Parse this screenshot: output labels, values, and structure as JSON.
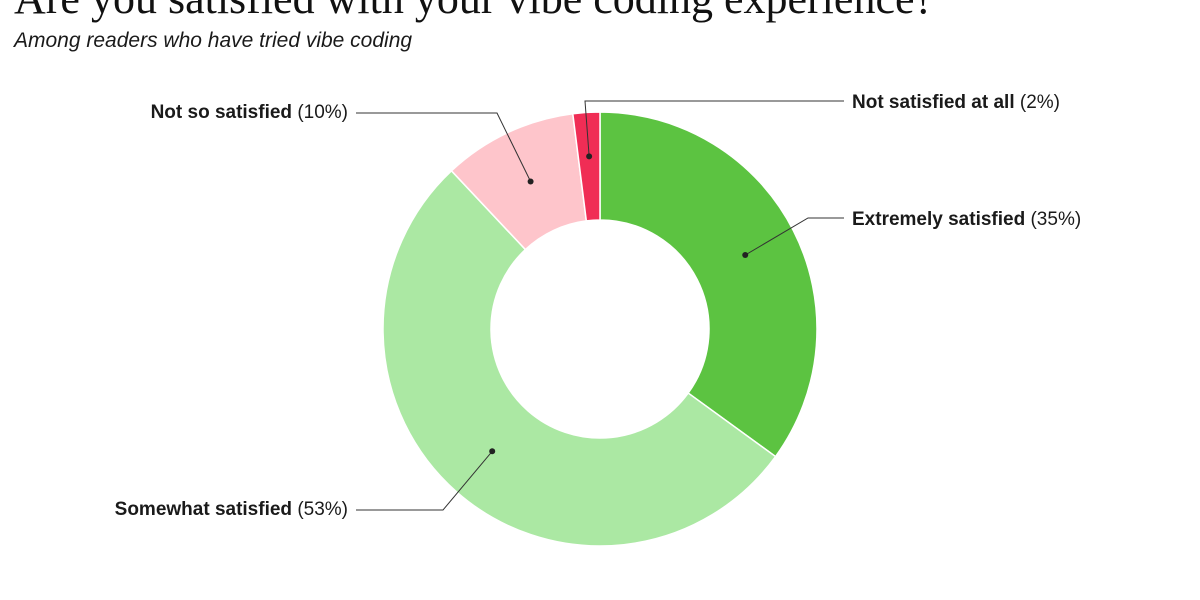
{
  "title": "Are you satisfied with your vibe coding experience?",
  "subtitle": "Among readers who have tried vibe coding",
  "chart_data": {
    "type": "pie",
    "donut": true,
    "title": "Are you satisfied with your vibe coding experience?",
    "subtitle": "Among readers who have tried vibe coding",
    "slices": [
      {
        "label": "Extremely satisfied",
        "pct_text": "(35%)",
        "value": 35,
        "color": "#5cc341"
      },
      {
        "label": "Somewhat satisfied",
        "pct_text": "(53%)",
        "value": 53,
        "color": "#abe8a3"
      },
      {
        "label": "Not so satisfied",
        "pct_text": "(10%)",
        "value": 10,
        "color": "#fec5cb"
      },
      {
        "label": "Not satisfied at all",
        "pct_text": "(2%)",
        "value": 2,
        "color": "#f02d55"
      }
    ],
    "legend": "callout labels"
  }
}
